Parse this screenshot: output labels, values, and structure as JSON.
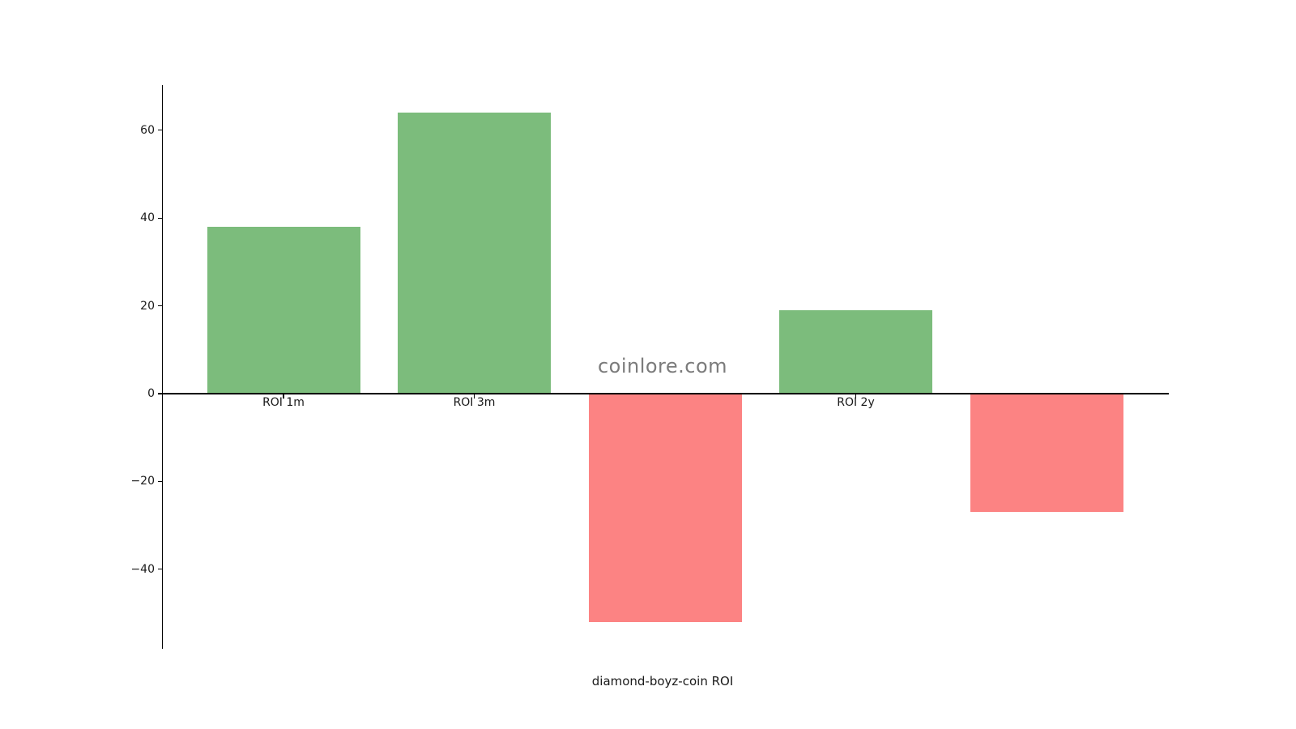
{
  "chart_data": {
    "type": "bar",
    "title": "",
    "xlabel": "diamond-boyz-coin ROI",
    "ylabel": "",
    "categories": [
      "ROI 1m",
      "ROI 3m",
      "",
      "ROI 2y",
      ""
    ],
    "values": [
      38,
      64,
      -52,
      19,
      -27
    ],
    "positive_color": "#7cbc7c",
    "negative_color": "#fc8383",
    "axis_color": "#000000",
    "text_color": "#1a1a1a",
    "ylim": [
      -57,
      70
    ],
    "ytick_values": [
      60,
      40,
      20,
      0,
      -20,
      -40
    ],
    "ytick_labels": [
      "60",
      "40",
      "20",
      "0",
      "−20",
      "−40"
    ],
    "grid": false,
    "legend": false,
    "layout_note_labels_hidden_behind_negative_bars": true
  },
  "watermark": {
    "text": "coinlore.com",
    "color": "#7b7b7b"
  }
}
